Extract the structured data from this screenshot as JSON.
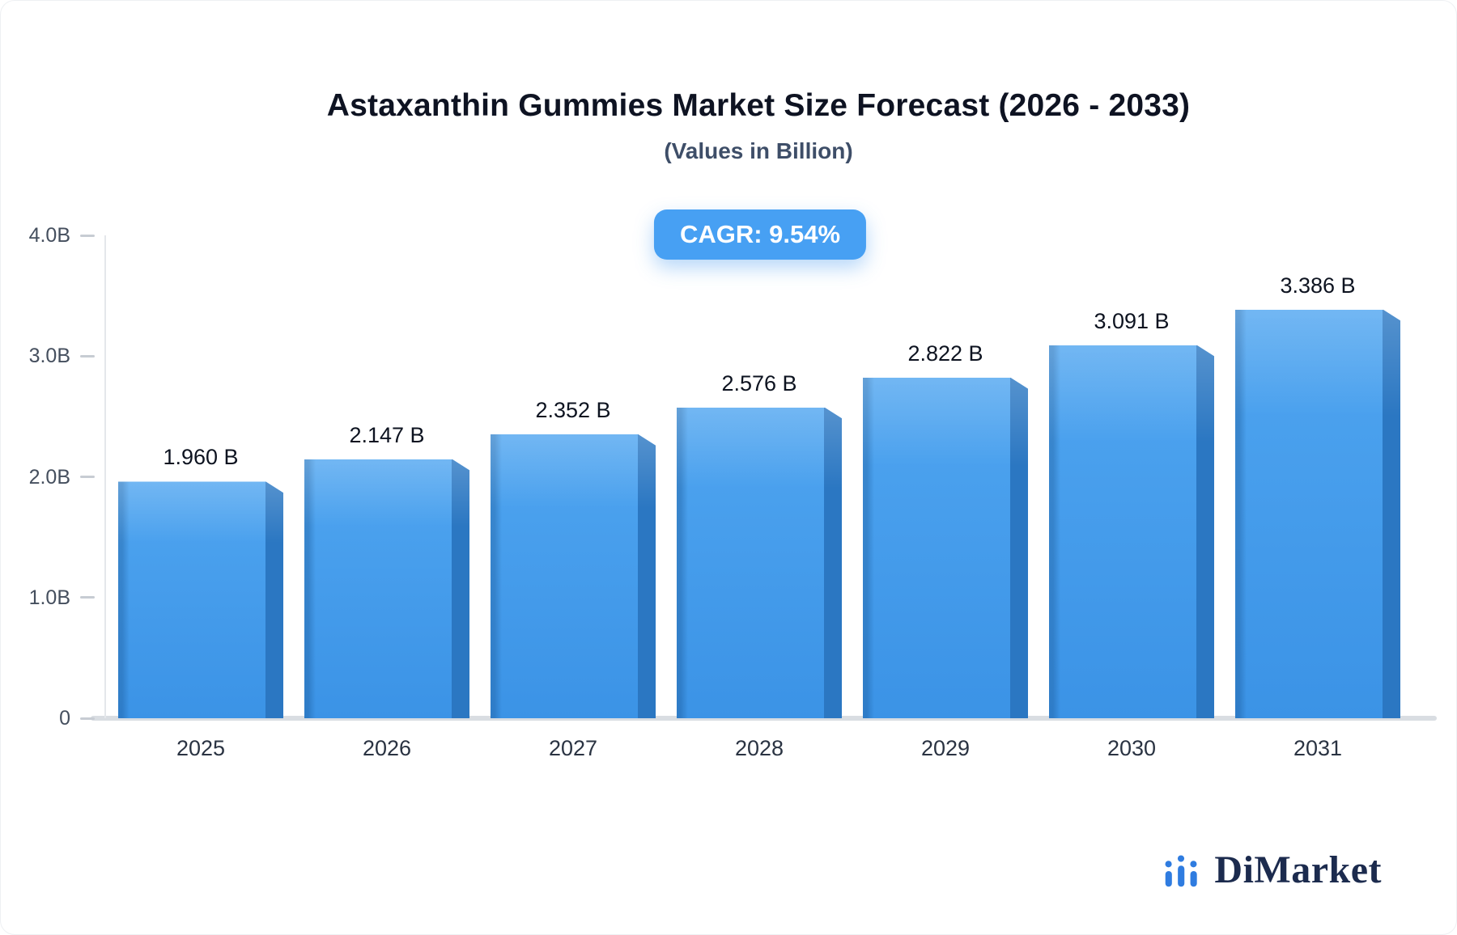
{
  "chart_data": {
    "type": "bar",
    "title": "Astaxanthin Gummies Market Size Forecast (2026 - 2033)",
    "subtitle": "(Values in Billion)",
    "annotation": "CAGR: 9.54%",
    "categories": [
      "2025",
      "2026",
      "2027",
      "2028",
      "2029",
      "2030",
      "2031"
    ],
    "values": [
      1.96,
      2.147,
      2.352,
      2.576,
      2.822,
      3.091,
      3.386
    ],
    "value_labels": [
      "1.960 B",
      "2.147 B",
      "2.352 B",
      "2.576 B",
      "2.822 B",
      "3.091 B",
      "3.386 B"
    ],
    "xlabel": "",
    "ylabel": "",
    "ylim": [
      0,
      4.0
    ],
    "yticks": [
      {
        "label": "4.0B",
        "value": 4.0
      },
      {
        "label": "3.0B",
        "value": 3.0
      },
      {
        "label": "2.0B",
        "value": 2.0
      },
      {
        "label": "1.0B",
        "value": 1.0
      },
      {
        "label": "0",
        "value": 0
      }
    ],
    "grid": false,
    "legend_position": "none",
    "bar_color": "#3f9ae8",
    "bar_side_color": "#2b77c2",
    "badge_color": "#47a0f3"
  },
  "branding": {
    "logo_text": "DiMarket",
    "logo_icon": "bar-chart-logo-icon",
    "logo_text_color": "#1c2b4e",
    "logo_icon_color": "#2f7ce0"
  }
}
